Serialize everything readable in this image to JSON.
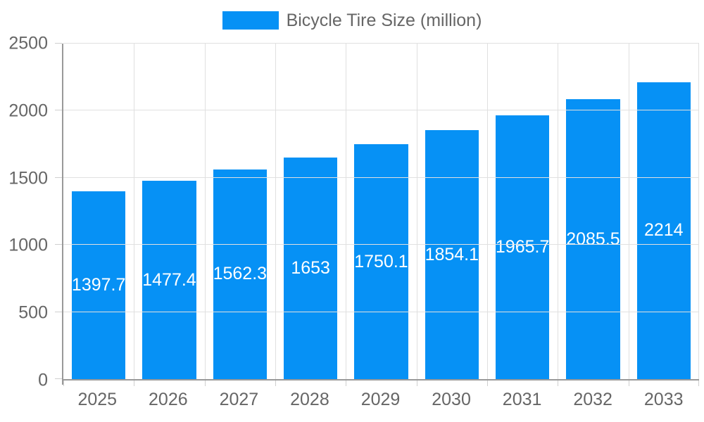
{
  "chart_data": {
    "type": "bar",
    "title": "Bicycle Tire Size (million)",
    "categories": [
      "2025",
      "2026",
      "2027",
      "2028",
      "2029",
      "2030",
      "2031",
      "2032",
      "2033"
    ],
    "values": [
      1397.7,
      1477.4,
      1562.3,
      1653,
      1750.1,
      1854.1,
      1965.7,
      2085.5,
      2214
    ],
    "value_labels": [
      "1397.7",
      "1477.4",
      "1562.3",
      "1653",
      "1750.1",
      "1854.1",
      "1965.7",
      "2085.5",
      "2214"
    ],
    "xlabel": "",
    "ylabel": "",
    "ylim": [
      0,
      2500
    ],
    "y_ticks": [
      0,
      500,
      1000,
      1500,
      2000,
      2500
    ],
    "y_tick_labels": [
      "0",
      "500",
      "1000",
      "1500",
      "2000",
      "2500"
    ],
    "grid": true,
    "legend_position": "top",
    "legend_entries": [
      "Bicycle Tire Size (million)"
    ],
    "colors": {
      "bar": "#0691f5",
      "bar_label": "#ffffff",
      "axis_text": "#666666",
      "gridline": "#e0e0e0",
      "tick_mark": "#cfcfcf",
      "axis_line": "#999999",
      "background": "#ffffff"
    }
  }
}
